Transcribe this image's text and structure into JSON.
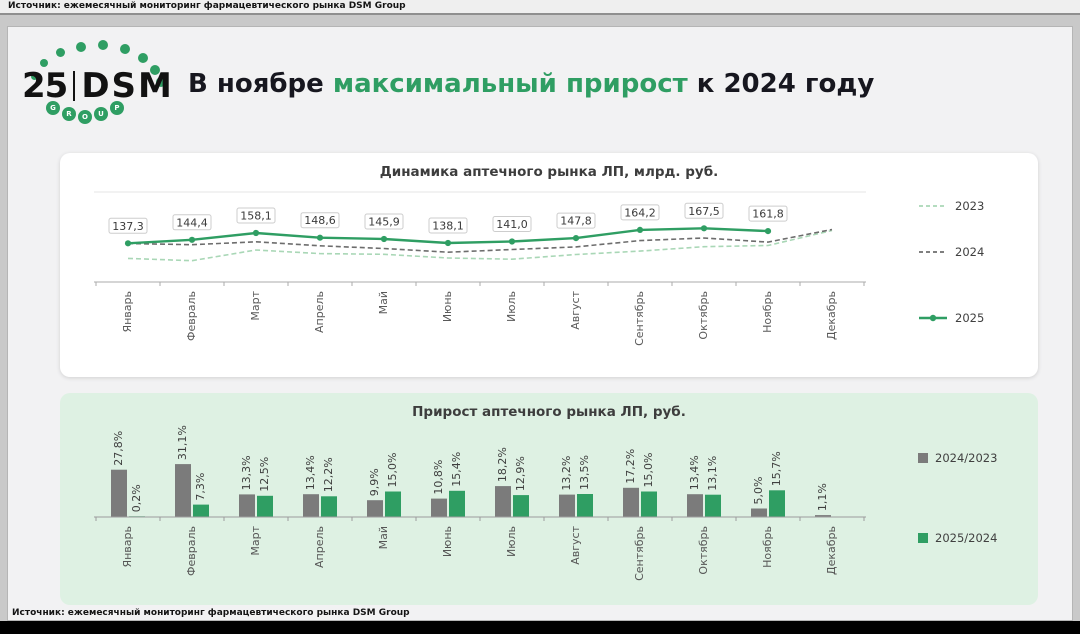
{
  "page": {
    "source_top": "Источник: ежемесячный мониторинг фармацевтического рынка DSM Group",
    "source_bottom": "Источник: ежемесячный мониторинг фармацевтического рынка DSM Group"
  },
  "logo": {
    "number": "25",
    "name": "DSM",
    "group_letters": [
      "G",
      "R",
      "O",
      "U",
      "P"
    ]
  },
  "title": {
    "prefix": "В ноябре ",
    "highlight": "максимальный прирост",
    "suffix": " к 2024 году"
  },
  "colors": {
    "accent_green": "#2f9e63",
    "panel_light_green": "#def1e3",
    "series_gray": "#7b7b7b",
    "series_light_green_dashed": "#a9d7b6",
    "series_dark_gray_dashed": "#6d6d6d"
  },
  "chart_data": [
    {
      "type": "line",
      "title": "Динамика аптечного рынка ЛП, млрд. руб.",
      "categories": [
        "Январь",
        "Февраль",
        "Март",
        "Апрель",
        "Май",
        "Июнь",
        "Июль",
        "Август",
        "Сентябрь",
        "Октябрь",
        "Ноябрь",
        "Декабрь"
      ],
      "ylim": [
        60,
        240
      ],
      "grid": false,
      "legend_position": "right",
      "series": [
        {
          "name": "2023",
          "style": "dashed",
          "color": "#a9d7b6",
          "estimated": true,
          "values": [
            107.2,
            102.7,
            124.0,
            116.8,
            115.5,
            108.0,
            105.7,
            115.0,
            121.8,
            130.6,
            133.1,
            163.0
          ]
        },
        {
          "name": "2024",
          "style": "dashed",
          "color": "#6d6d6d",
          "estimated": true,
          "values": [
            137.0,
            134.6,
            140.5,
            132.4,
            126.9,
            119.7,
            124.9,
            130.2,
            142.8,
            148.1,
            139.8,
            165.0
          ]
        },
        {
          "name": "2025",
          "style": "solid-markers",
          "color": "#2f9e63",
          "values": [
            137.3,
            144.4,
            158.1,
            148.6,
            145.9,
            138.1,
            141.0,
            147.8,
            164.2,
            167.5,
            161.8,
            null
          ],
          "labels": [
            "137,3",
            "144,4",
            "158,1",
            "148,6",
            "145,9",
            "138,1",
            "141,0",
            "147,8",
            "164,2",
            "167,5",
            "161,8",
            null
          ]
        }
      ]
    },
    {
      "type": "bar",
      "title": "Прирост аптечного рынка ЛП, руб.",
      "categories": [
        "Январь",
        "Февраль",
        "Март",
        "Апрель",
        "Май",
        "Июнь",
        "Июль",
        "Август",
        "Сентябрь",
        "Октябрь",
        "Ноябрь",
        "Декабрь"
      ],
      "ylim": [
        0,
        35
      ],
      "grid": false,
      "legend_position": "right",
      "series": [
        {
          "name": "2024/2023",
          "color": "#7b7b7b",
          "values": [
            27.8,
            31.1,
            13.3,
            13.4,
            9.9,
            10.8,
            18.2,
            13.2,
            17.2,
            13.4,
            5.0,
            1.1
          ],
          "labels": [
            "27,8%",
            "31,1%",
            "13,3%",
            "13,4%",
            "9,9%",
            "10,8%",
            "18,2%",
            "13,2%",
            "17,2%",
            "13,4%",
            "5,0%",
            "1,1%"
          ]
        },
        {
          "name": "2025/2024",
          "color": "#2f9e63",
          "values": [
            0.2,
            7.3,
            12.5,
            12.2,
            15.0,
            15.4,
            12.9,
            13.5,
            15.0,
            13.1,
            15.7,
            null
          ],
          "labels": [
            "0,2%",
            "7,3%",
            "12,5%",
            "12,2%",
            "15,0%",
            "15,4%",
            "12,9%",
            "13,5%",
            "15,0%",
            "13,1%",
            "15,7%",
            null
          ]
        }
      ]
    }
  ]
}
